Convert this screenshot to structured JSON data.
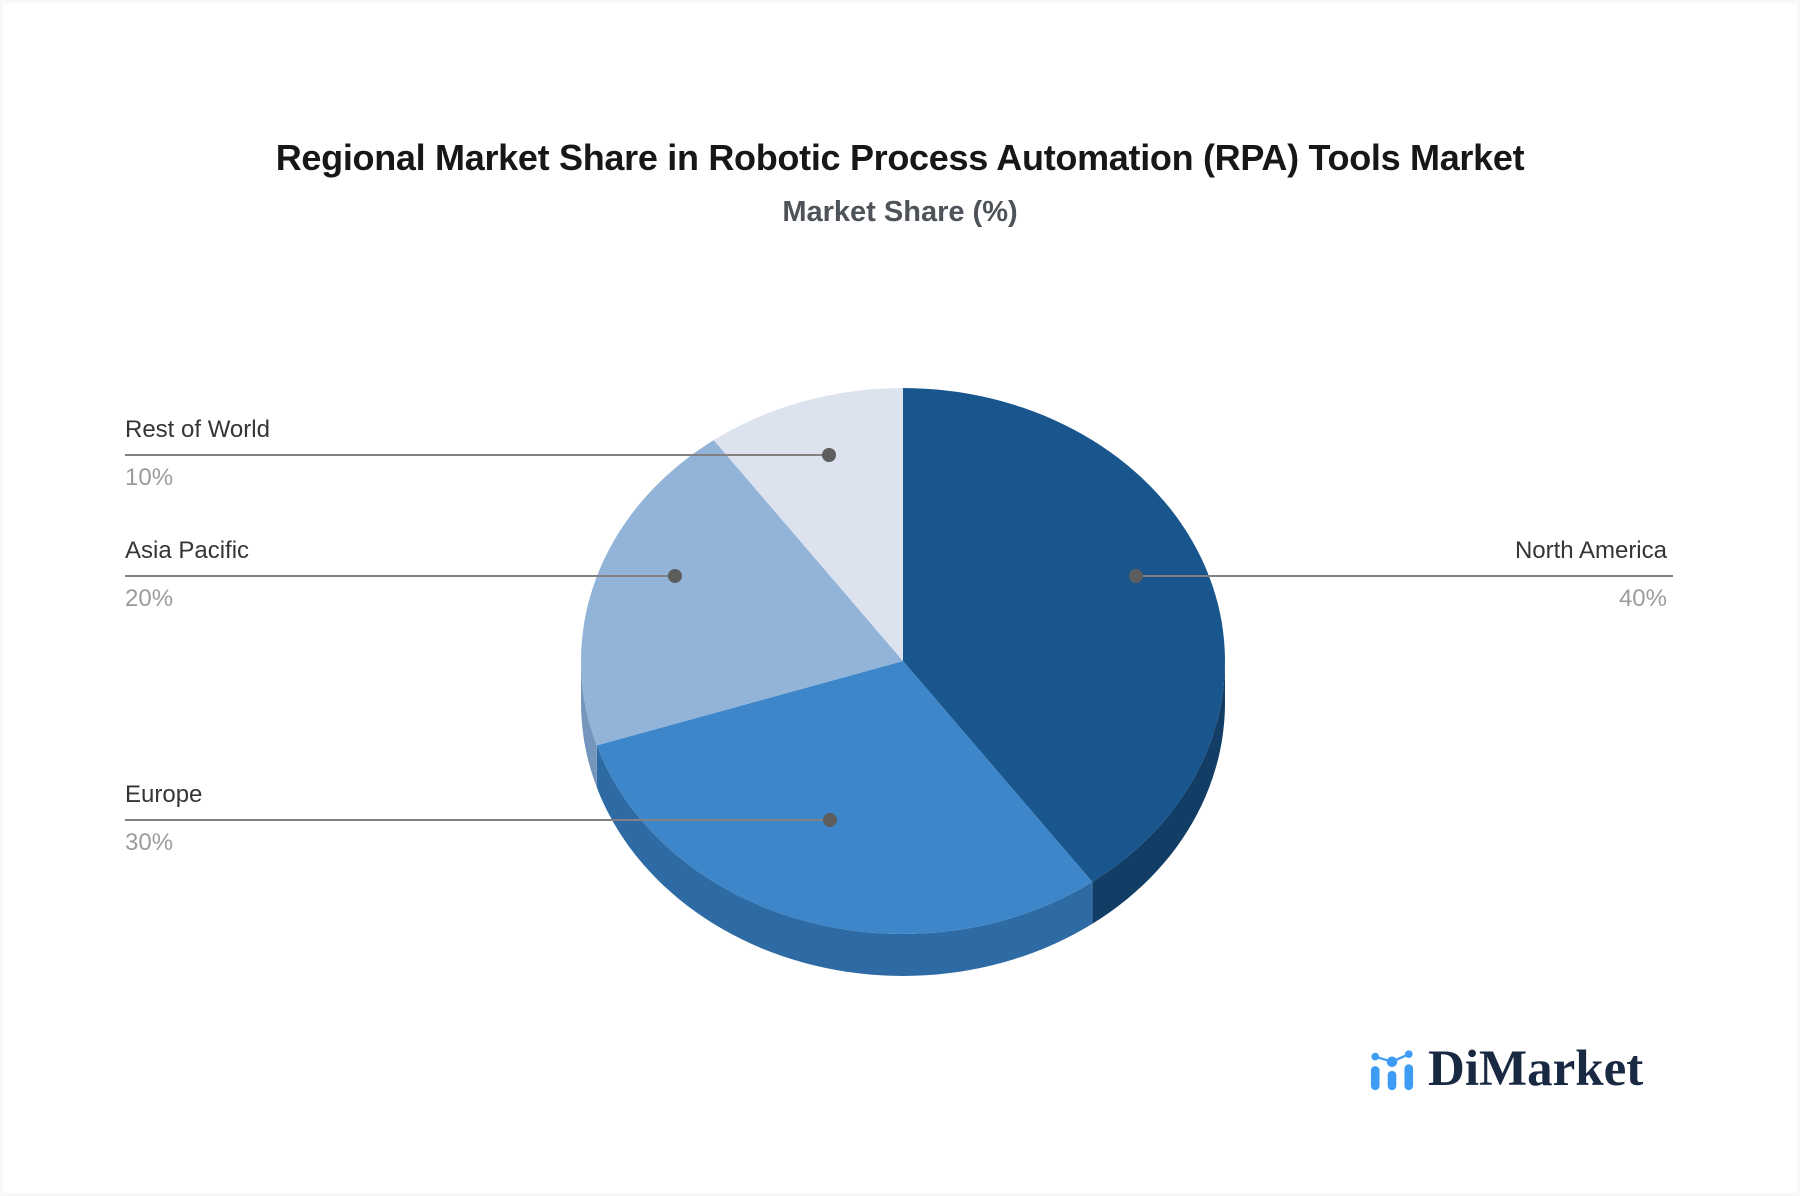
{
  "page": {
    "background": "#ffffff"
  },
  "chart_data": {
    "type": "pie",
    "title": "Regional Market Share in Robotic Process Automation (RPA) Tools Market",
    "subtitle": "Market Share (%)",
    "unit": "%",
    "effect": "3d",
    "start_angle_deg": 90,
    "direction": "clockwise",
    "legend_position": "callout-labels",
    "slices": [
      {
        "label": "North America",
        "value": 40,
        "pct_label": "40%",
        "color": "#1a568e",
        "side_color": "#123e66",
        "label_side": "right"
      },
      {
        "label": "Europe",
        "value": 30,
        "pct_label": "30%",
        "color": "#3c86c9",
        "side_color": "#2e6ba5",
        "label_side": "left"
      },
      {
        "label": "Asia Pacific",
        "value": 20,
        "pct_label": "20%",
        "color": "#92b4d8",
        "side_color": "#7596bc",
        "label_side": "left"
      },
      {
        "label": "Rest of World",
        "value": 10,
        "pct_label": "10%",
        "color": "#dde3ee",
        "side_color": "#b9c3d3",
        "label_side": "left"
      }
    ],
    "colors": {
      "leader_line": "#818181",
      "leader_dot": "#5d5d5d",
      "label_text": "#353535",
      "pct_text": "#9c9c9c",
      "title_text": "#171717",
      "subtitle_text": "#4d5358"
    }
  },
  "branding": {
    "logo_text": "DiMarket",
    "logo_icon": "bar-chart-icon",
    "logo_text_color": "#1a2942",
    "logo_icon_color": "#3f9cf4"
  }
}
